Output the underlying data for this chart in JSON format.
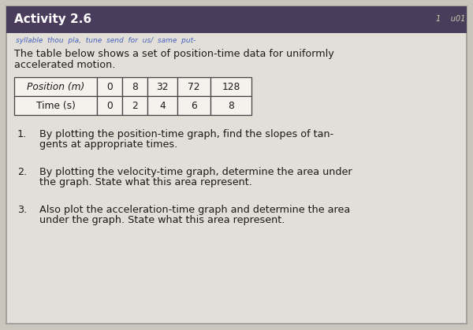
{
  "title": "Activity 2.6",
  "title_bg_color": "#4a3d5c",
  "title_text_color": "#ffffff",
  "intro_text_line1": "The table below shows a set of position-time data for uniformly",
  "intro_text_line2": "accelerated motion.",
  "table_headers": [
    "Position (m)",
    "0",
    "8",
    "32",
    "72",
    "128"
  ],
  "table_row2": [
    "Time (s)",
    "0",
    "2",
    "4",
    "6",
    "8"
  ],
  "item1_line1": "By plotting the position-time graph, find the slopes of tan-",
  "item1_line2": "gents at appropriate times.",
  "item2_line1": "By plotting the velocity-time graph, determine the area under",
  "item2_line2": "the graph. State what this area represent.",
  "item3_line1": "Also plot the acceleration-time graph and determine the area",
  "item3_line2": "under the graph. State what this area represent.",
  "bg_color": "#d8d4cc",
  "page_bg_color": "#cac6be",
  "inner_bg_color": "#e2dfd8",
  "border_color": "#999999",
  "table_border_color": "#444444",
  "body_text_color": "#1a1a1a",
  "handwritten_color": "#2244bb",
  "title_fontsize": 11,
  "body_fontsize": 9.2,
  "item_fontsize": 9.2,
  "table_fontsize": 8.8
}
